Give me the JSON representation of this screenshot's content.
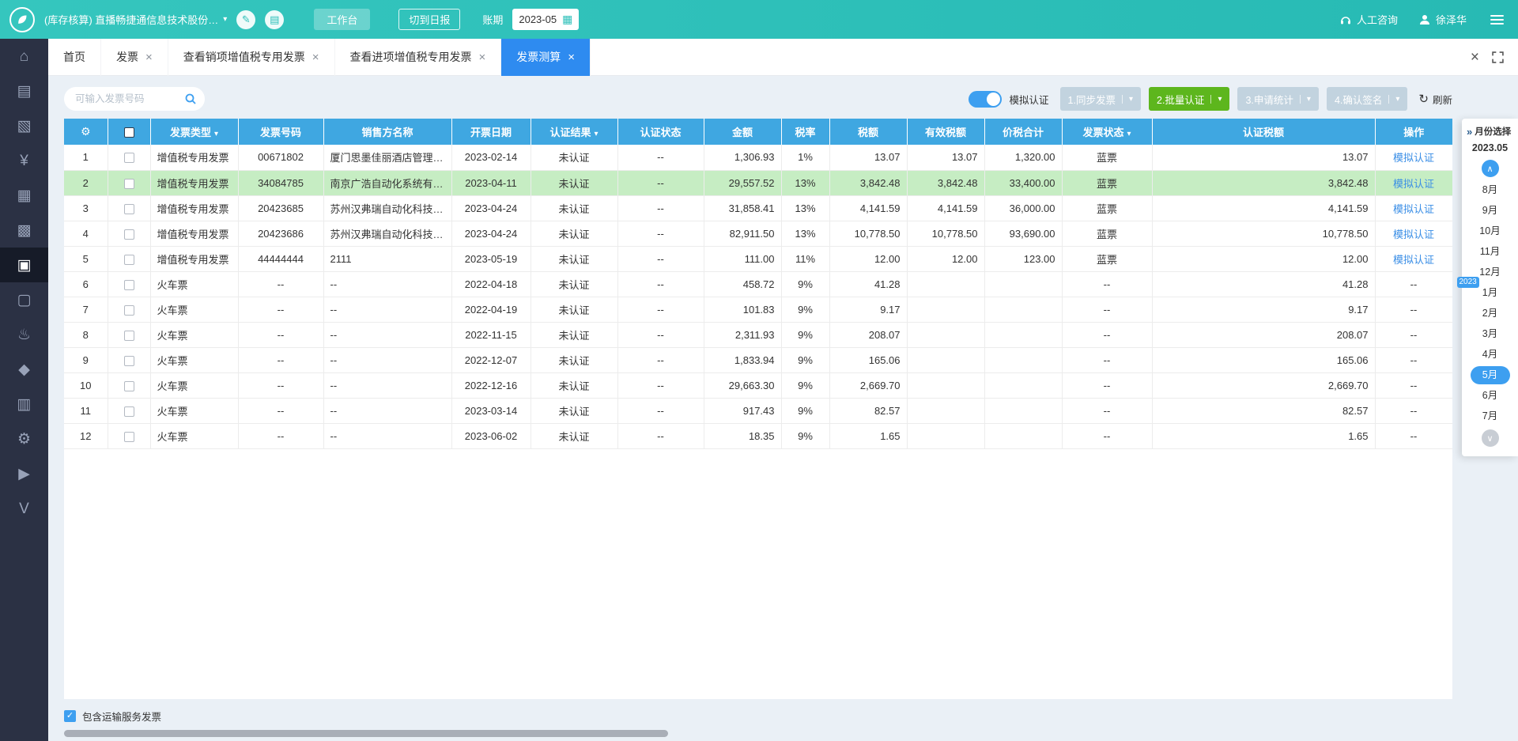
{
  "icons": {
    "chevron_down": "▾",
    "close": "×",
    "gear": "⚙",
    "refresh": "↻",
    "check": "✓",
    "collapse": "»",
    "scroll_up": "∧",
    "scroll_down": "∨",
    "calendar": "▦",
    "edit": "✎",
    "document": "▤"
  },
  "topbar": {
    "company": "(库存核算) 直播畅捷通信息技术股份…",
    "workbench": "工作台",
    "switch_daily": "切到日报",
    "period_label": "账期",
    "period_value": "2023-05",
    "support": "人工咨询",
    "user": "徐泽华"
  },
  "sidebar": {
    "items": [
      {
        "name": "home",
        "glyph": "⌂",
        "active": false
      },
      {
        "name": "vouchers",
        "glyph": "▤",
        "active": false
      },
      {
        "name": "reports",
        "glyph": "▧",
        "active": false
      },
      {
        "name": "tax",
        "glyph": "¥",
        "active": false
      },
      {
        "name": "bank",
        "glyph": "▦",
        "active": false
      },
      {
        "name": "modules",
        "glyph": "▩",
        "active": false
      },
      {
        "name": "inventory",
        "glyph": "▣",
        "active": true
      },
      {
        "name": "assets",
        "glyph": "▢",
        "active": false
      },
      {
        "name": "service",
        "glyph": "♨",
        "active": false
      },
      {
        "name": "checkout",
        "glyph": "◆",
        "active": false
      },
      {
        "name": "archive",
        "glyph": "▥",
        "active": false
      },
      {
        "name": "settings",
        "glyph": "⚙",
        "active": false
      },
      {
        "name": "training",
        "glyph": "▶",
        "active": false
      },
      {
        "name": "brand",
        "glyph": "V",
        "active": false
      }
    ]
  },
  "tabs": [
    {
      "id": "home",
      "label": "首页",
      "closable": false,
      "active": false
    },
    {
      "id": "invoice",
      "label": "发票",
      "closable": true,
      "active": false
    },
    {
      "id": "view-output-vat",
      "label": "查看销项增值税专用发票",
      "closable": true,
      "active": false
    },
    {
      "id": "view-input-vat",
      "label": "查看进项增值税专用发票",
      "closable": true,
      "active": false
    },
    {
      "id": "invoice-calc",
      "label": "发票测算",
      "closable": true,
      "active": true
    }
  ],
  "toolbar": {
    "search_placeholder": "可输入发票号码",
    "toggle_label": "模拟认证",
    "toggle_on": true,
    "buttons": [
      {
        "label": "1.同步发票",
        "variant": "muted"
      },
      {
        "label": "2.批量认证",
        "variant": "green"
      },
      {
        "label": "3.申请统计",
        "variant": "muted"
      },
      {
        "label": "4.确认签名",
        "variant": "muted"
      }
    ],
    "refresh": "刷新"
  },
  "table": {
    "headers": [
      {
        "label": "发票类型",
        "filter": true
      },
      {
        "label": "发票号码",
        "filter": false
      },
      {
        "label": "销售方名称",
        "filter": false
      },
      {
        "label": "开票日期",
        "filter": false
      },
      {
        "label": "认证结果",
        "filter": true
      },
      {
        "label": "认证状态",
        "filter": false
      },
      {
        "label": "金额",
        "filter": false
      },
      {
        "label": "税率",
        "filter": false
      },
      {
        "label": "税额",
        "filter": false
      },
      {
        "label": "有效税额",
        "filter": false
      },
      {
        "label": "价税合计",
        "filter": false
      },
      {
        "label": "发票状态",
        "filter": true
      },
      {
        "label": "认证税额",
        "filter": false
      },
      {
        "label": "操作",
        "filter": false
      }
    ],
    "highlighted_row": 2,
    "rows": [
      [
        "增值税专用发票",
        "00671802",
        "厦门思墨佳丽酒店管理有限…",
        "2023-02-14",
        "未认证",
        "--",
        "1,306.93",
        "1%",
        "13.07",
        "13.07",
        "1,320.00",
        "蓝票",
        "13.07",
        "模拟认证"
      ],
      [
        "增值税专用发票",
        "34084785",
        "南京广浩自动化系统有限责…",
        "2023-04-11",
        "未认证",
        "--",
        "29,557.52",
        "13%",
        "3,842.48",
        "3,842.48",
        "33,400.00",
        "蓝票",
        "3,842.48",
        "模拟认证"
      ],
      [
        "增值税专用发票",
        "20423685",
        "苏州汉弗瑞自动化科技有限…",
        "2023-04-24",
        "未认证",
        "--",
        "31,858.41",
        "13%",
        "4,141.59",
        "4,141.59",
        "36,000.00",
        "蓝票",
        "4,141.59",
        "模拟认证"
      ],
      [
        "增值税专用发票",
        "20423686",
        "苏州汉弗瑞自动化科技有限…",
        "2023-04-24",
        "未认证",
        "--",
        "82,911.50",
        "13%",
        "10,778.50",
        "10,778.50",
        "93,690.00",
        "蓝票",
        "10,778.50",
        "模拟认证"
      ],
      [
        "增值税专用发票",
        "44444444",
        "2111",
        "2023-05-19",
        "未认证",
        "--",
        "111.00",
        "11%",
        "12.00",
        "12.00",
        "123.00",
        "蓝票",
        "12.00",
        "模拟认证"
      ],
      [
        "火车票",
        "--",
        "--",
        "2022-04-18",
        "未认证",
        "--",
        "458.72",
        "9%",
        "41.28",
        "",
        "",
        "--",
        "41.28",
        "--"
      ],
      [
        "火车票",
        "--",
        "--",
        "2022-04-19",
        "未认证",
        "--",
        "101.83",
        "9%",
        "9.17",
        "",
        "",
        "--",
        "9.17",
        "--"
      ],
      [
        "火车票",
        "--",
        "--",
        "2022-11-15",
        "未认证",
        "--",
        "2,311.93",
        "9%",
        "208.07",
        "",
        "",
        "--",
        "208.07",
        "--"
      ],
      [
        "火车票",
        "--",
        "--",
        "2022-12-07",
        "未认证",
        "--",
        "1,833.94",
        "9%",
        "165.06",
        "",
        "",
        "--",
        "165.06",
        "--"
      ],
      [
        "火车票",
        "--",
        "--",
        "2022-12-16",
        "未认证",
        "--",
        "29,663.30",
        "9%",
        "2,669.70",
        "",
        "",
        "--",
        "2,669.70",
        "--"
      ],
      [
        "火车票",
        "--",
        "--",
        "2023-03-14",
        "未认证",
        "--",
        "917.43",
        "9%",
        "82.57",
        "",
        "",
        "--",
        "82.57",
        "--"
      ],
      [
        "火车票",
        "--",
        "--",
        "2023-06-02",
        "未认证",
        "--",
        "18.35",
        "9%",
        "1.65",
        "",
        "",
        "--",
        "1.65",
        "--"
      ]
    ]
  },
  "month_panel": {
    "title": "月份选择",
    "current": "2023.05",
    "year_badge": "2023",
    "badge_before": "1月",
    "months": [
      "8月",
      "9月",
      "10月",
      "11月",
      "12月",
      "1月",
      "2月",
      "3月",
      "4月",
      "5月",
      "6月",
      "7月"
    ],
    "selected": "5月"
  },
  "footer": {
    "checkbox_label": "包含运输服务发票",
    "checked": true
  },
  "colors": {
    "topbar_teal": "#2bbfb9",
    "sidebar_navy": "#2b3144",
    "active_tab_blue": "#2e8bf0",
    "table_header_blue": "#3fa7e1",
    "highlight_row_green": "#c6edc3",
    "green_button": "#5db61d",
    "accent_blue": "#3d9ff0",
    "link_blue": "#3a8ee6"
  }
}
